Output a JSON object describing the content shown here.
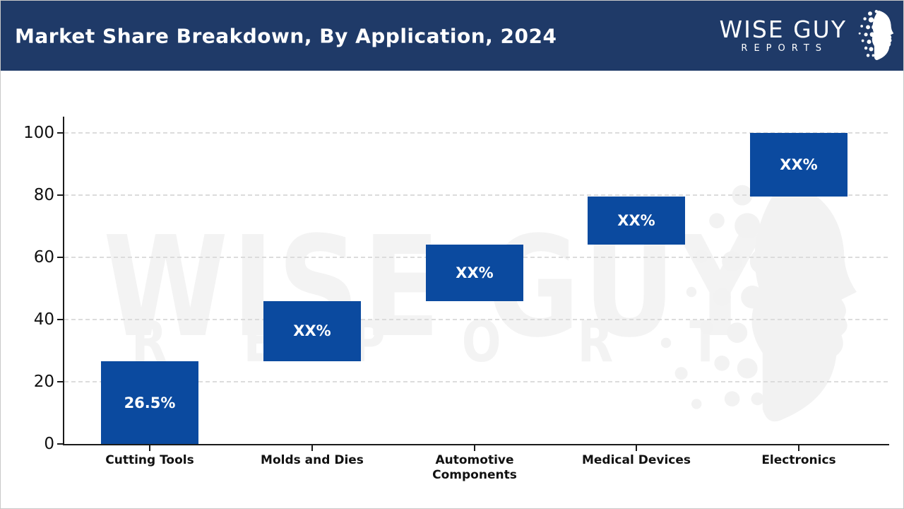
{
  "header": {
    "title": "Market Share Breakdown, By Application, 2024",
    "logo": {
      "line1": "WISE GUY",
      "line2": "REPORTS"
    }
  },
  "watermark": {
    "line1": "WISE GUY",
    "line2": "R E P O R T S",
    "face_icon": "dotted-head-profile"
  },
  "colors": {
    "header_bg": "#1f3a68",
    "bar": "#0b4a9f",
    "grid": "#dcdcdc",
    "axis": "#1a1a1a",
    "bar_label_text": "#ffffff",
    "watermark": "#f3f3f3"
  },
  "chart_data": {
    "type": "bar",
    "subtype": "waterfall",
    "title": "Market Share Breakdown, By Application, 2024",
    "categories": [
      "Cutting Tools",
      "Molds and Dies",
      "Automotive Components",
      "Medical Devices",
      "Electronics"
    ],
    "bars": [
      {
        "category": "Cutting Tools",
        "start": 0,
        "end": 26.5,
        "label": "26.5%"
      },
      {
        "category": "Molds and Dies",
        "start": 26.5,
        "end": 46,
        "label": "XX%"
      },
      {
        "category": "Automotive Components",
        "start": 46,
        "end": 64,
        "label": "XX%"
      },
      {
        "category": "Medical Devices",
        "start": 64,
        "end": 79.5,
        "label": "XX%"
      },
      {
        "category": "Electronics",
        "start": 79.5,
        "end": 100,
        "label": "XX%"
      }
    ],
    "y_ticks": [
      0,
      20,
      40,
      60,
      80,
      100
    ],
    "ylim": [
      0,
      105
    ],
    "xlabel": "",
    "ylabel": "",
    "legend": null,
    "grid": "horizontal-dashed"
  }
}
